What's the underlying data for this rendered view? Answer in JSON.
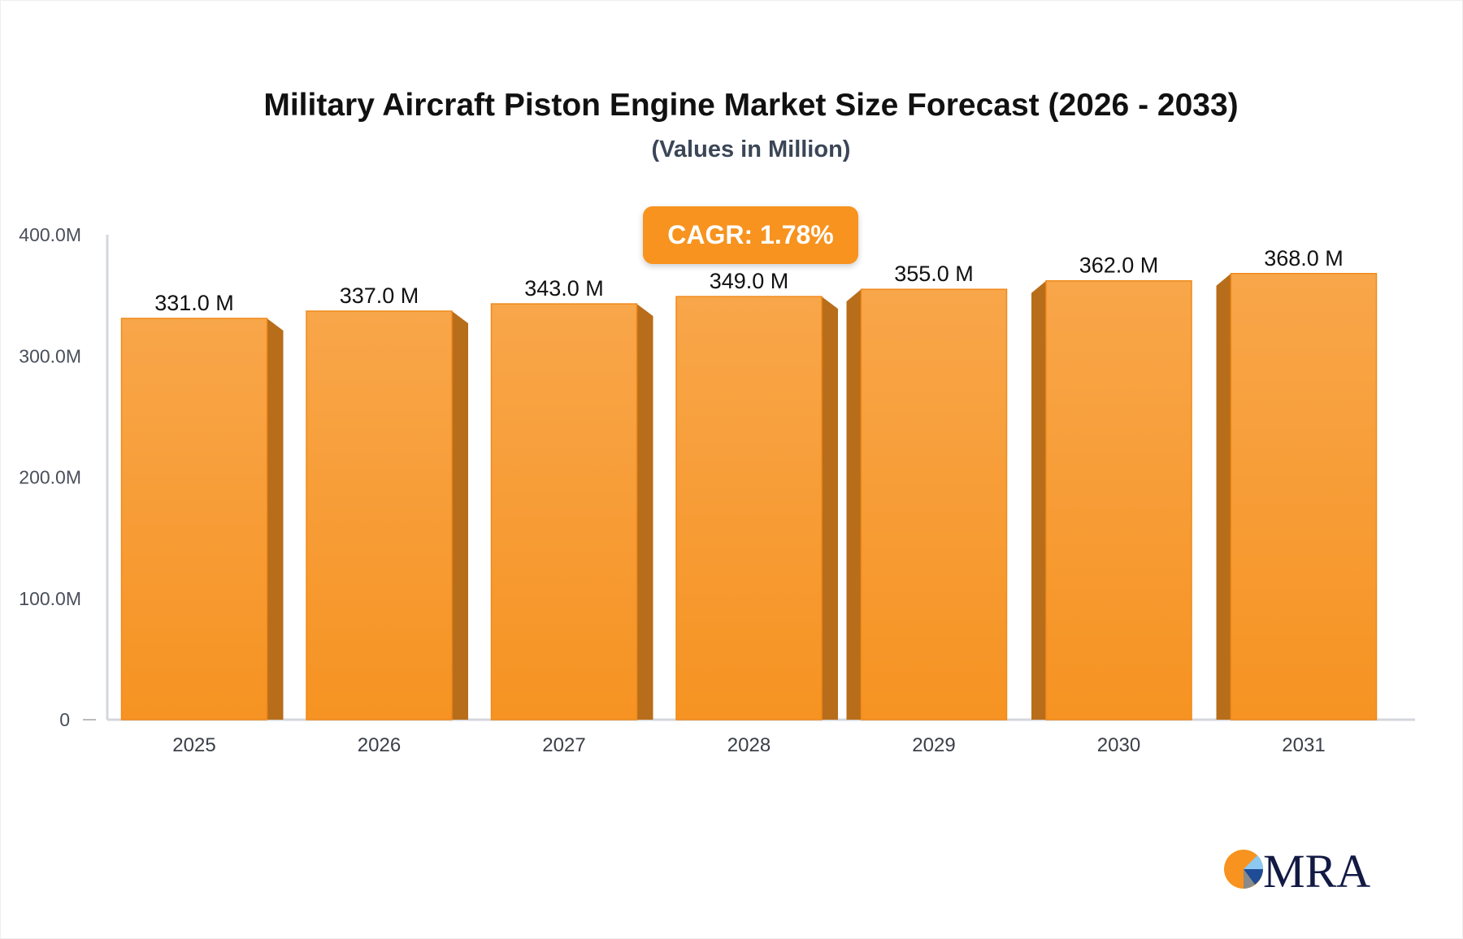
{
  "chart_data": {
    "type": "bar",
    "title": "Military Aircraft Piston Engine Market Size Forecast (2026 - 2033)",
    "subtitle": "(Values in Million)",
    "categories": [
      "2025",
      "2026",
      "2027",
      "2028",
      "2029",
      "2030",
      "2031"
    ],
    "values": [
      331.0,
      337.0,
      343.0,
      349.0,
      355.0,
      362.0,
      368.0
    ],
    "data_labels": [
      "331.0 M",
      "337.0 M",
      "343.0 M",
      "349.0 M",
      "355.0 M",
      "362.0 M",
      "368.0 M"
    ],
    "yticks": [
      0,
      100,
      200,
      300,
      400
    ],
    "ytick_labels": [
      "0",
      "100.0M",
      "200.0M",
      "300.0M",
      "400.0M"
    ],
    "ylim": [
      0,
      400
    ],
    "grid": false,
    "annotation": "CAGR: 1.78%",
    "colors": {
      "bar": "#f7a03c",
      "bar_side": "#b86d1a",
      "badge": "#f7931e",
      "axis": "#d5d7de"
    }
  },
  "logo": {
    "text": "MRA"
  }
}
